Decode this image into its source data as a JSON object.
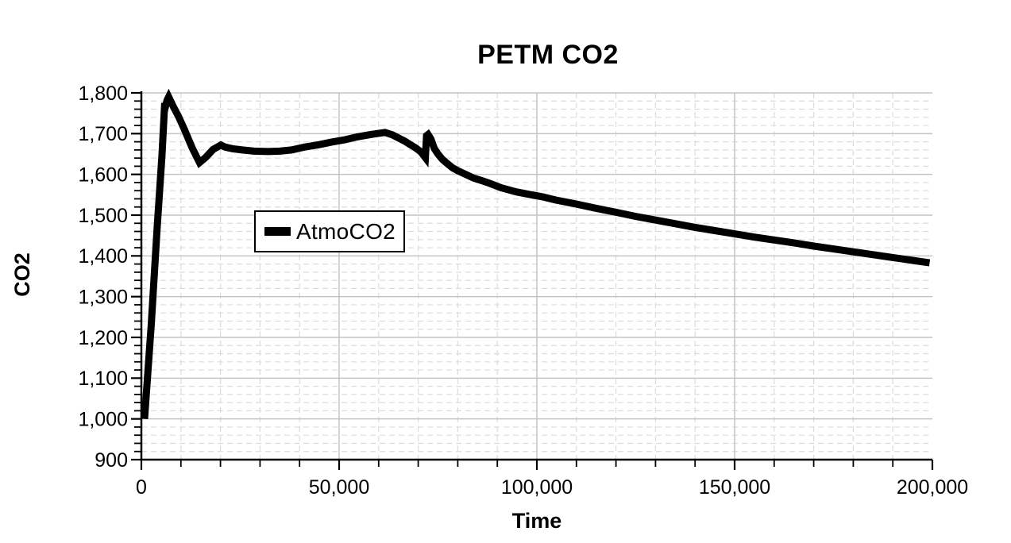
{
  "chart_data": {
    "type": "line",
    "title": "PETM CO2",
    "xlabel": "Time",
    "ylabel": "CO2",
    "xlim": [
      0,
      200000
    ],
    "ylim": [
      900,
      1800
    ],
    "x_major_ticks": [
      0,
      50000,
      100000,
      150000,
      200000
    ],
    "x_tick_labels": [
      "0",
      "50,000",
      "100,000",
      "150,000",
      "200,000"
    ],
    "x_minor_step": 10000,
    "y_major_ticks": [
      900,
      1000,
      1100,
      1200,
      1300,
      1400,
      1500,
      1600,
      1700,
      1800
    ],
    "y_tick_labels": [
      "900",
      "1,000",
      "1,100",
      "1,200",
      "1,300",
      "1,400",
      "1,500",
      "1,600",
      "1,700",
      "1,800"
    ],
    "y_minor_step": 20,
    "grid": {
      "major_style": "solid",
      "minor_style": "dashed"
    },
    "legend": {
      "position": "inside-upper-left",
      "entries": [
        {
          "label": "AtmoCO2",
          "color": "#000000"
        }
      ]
    },
    "series": [
      {
        "name": "AtmoCO2",
        "color": "#000000",
        "width": 9,
        "points": [
          [
            800,
            1000
          ],
          [
            2500,
            1230
          ],
          [
            4000,
            1470
          ],
          [
            5200,
            1645
          ],
          [
            5900,
            1775
          ],
          [
            6150,
            1768
          ],
          [
            6500,
            1782
          ],
          [
            6900,
            1790
          ],
          [
            7400,
            1780
          ],
          [
            8000,
            1768
          ],
          [
            9400,
            1742
          ],
          [
            10800,
            1712
          ],
          [
            12900,
            1664
          ],
          [
            14700,
            1629
          ],
          [
            16300,
            1642
          ],
          [
            18100,
            1661
          ],
          [
            20100,
            1672
          ],
          [
            21200,
            1667
          ],
          [
            23000,
            1663
          ],
          [
            25500,
            1660
          ],
          [
            28500,
            1657
          ],
          [
            32000,
            1656
          ],
          [
            35000,
            1657
          ],
          [
            38000,
            1660
          ],
          [
            41200,
            1667
          ],
          [
            45000,
            1673
          ],
          [
            48000,
            1679
          ],
          [
            51500,
            1685
          ],
          [
            54600,
            1692
          ],
          [
            58000,
            1698
          ],
          [
            61600,
            1703
          ],
          [
            63500,
            1697
          ],
          [
            64700,
            1691
          ],
          [
            66500,
            1682
          ],
          [
            68000,
            1673
          ],
          [
            69500,
            1664
          ],
          [
            70700,
            1655
          ],
          [
            71800,
            1641
          ],
          [
            72100,
            1695
          ],
          [
            72500,
            1698
          ],
          [
            73200,
            1687
          ],
          [
            74100,
            1663
          ],
          [
            75000,
            1650
          ],
          [
            76100,
            1637
          ],
          [
            77400,
            1626
          ],
          [
            78700,
            1616
          ],
          [
            80000,
            1609
          ],
          [
            81300,
            1603
          ],
          [
            84000,
            1591
          ],
          [
            86000,
            1585
          ],
          [
            88100,
            1578
          ],
          [
            91000,
            1567
          ],
          [
            94800,
            1557
          ],
          [
            98000,
            1551
          ],
          [
            101400,
            1545
          ],
          [
            104800,
            1537
          ],
          [
            110000,
            1527
          ],
          [
            114900,
            1517
          ],
          [
            120000,
            1507
          ],
          [
            124900,
            1497
          ],
          [
            130000,
            1488
          ],
          [
            135000,
            1479
          ],
          [
            140000,
            1470
          ],
          [
            145000,
            1462
          ],
          [
            150000,
            1454
          ],
          [
            155000,
            1446
          ],
          [
            160000,
            1439
          ],
          [
            165000,
            1432
          ],
          [
            170000,
            1424
          ],
          [
            175000,
            1417
          ],
          [
            180000,
            1410
          ],
          [
            185000,
            1403
          ],
          [
            190000,
            1396
          ],
          [
            195000,
            1389
          ],
          [
            199300,
            1383
          ]
        ]
      }
    ]
  },
  "colors": {
    "background": "#ffffff",
    "text": "#000000",
    "axis": "#000000",
    "tick": "#000000",
    "grid_major": "#c4c4c4",
    "grid_minor": "#dcdcdc",
    "series": "#000000",
    "legend_border": "#000000",
    "legend_background": "#ffffff"
  }
}
